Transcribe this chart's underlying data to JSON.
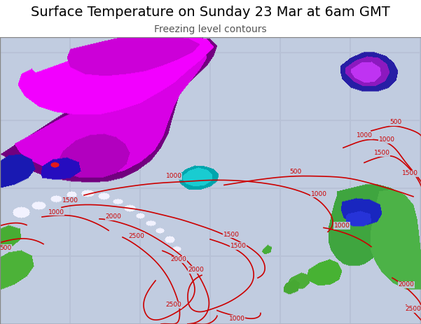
{
  "title": "Surface Temperature on Sunday 23 Mar at 6am GMT",
  "subtitle": "Freezing level contours",
  "title_fontsize": 14,
  "subtitle_fontsize": 10,
  "fig_width": 6.01,
  "fig_height": 4.63,
  "dpi": 100,
  "ocean_color": [
    0.76,
    0.8,
    0.88
  ],
  "title_bg": [
    1.0,
    1.0,
    1.0
  ],
  "contour_color": "#cc0000",
  "contour_lw": 1.2,
  "contour_fs": 6.5,
  "grid_color": [
    0.72,
    0.76,
    0.84
  ],
  "border_color": "#888888"
}
